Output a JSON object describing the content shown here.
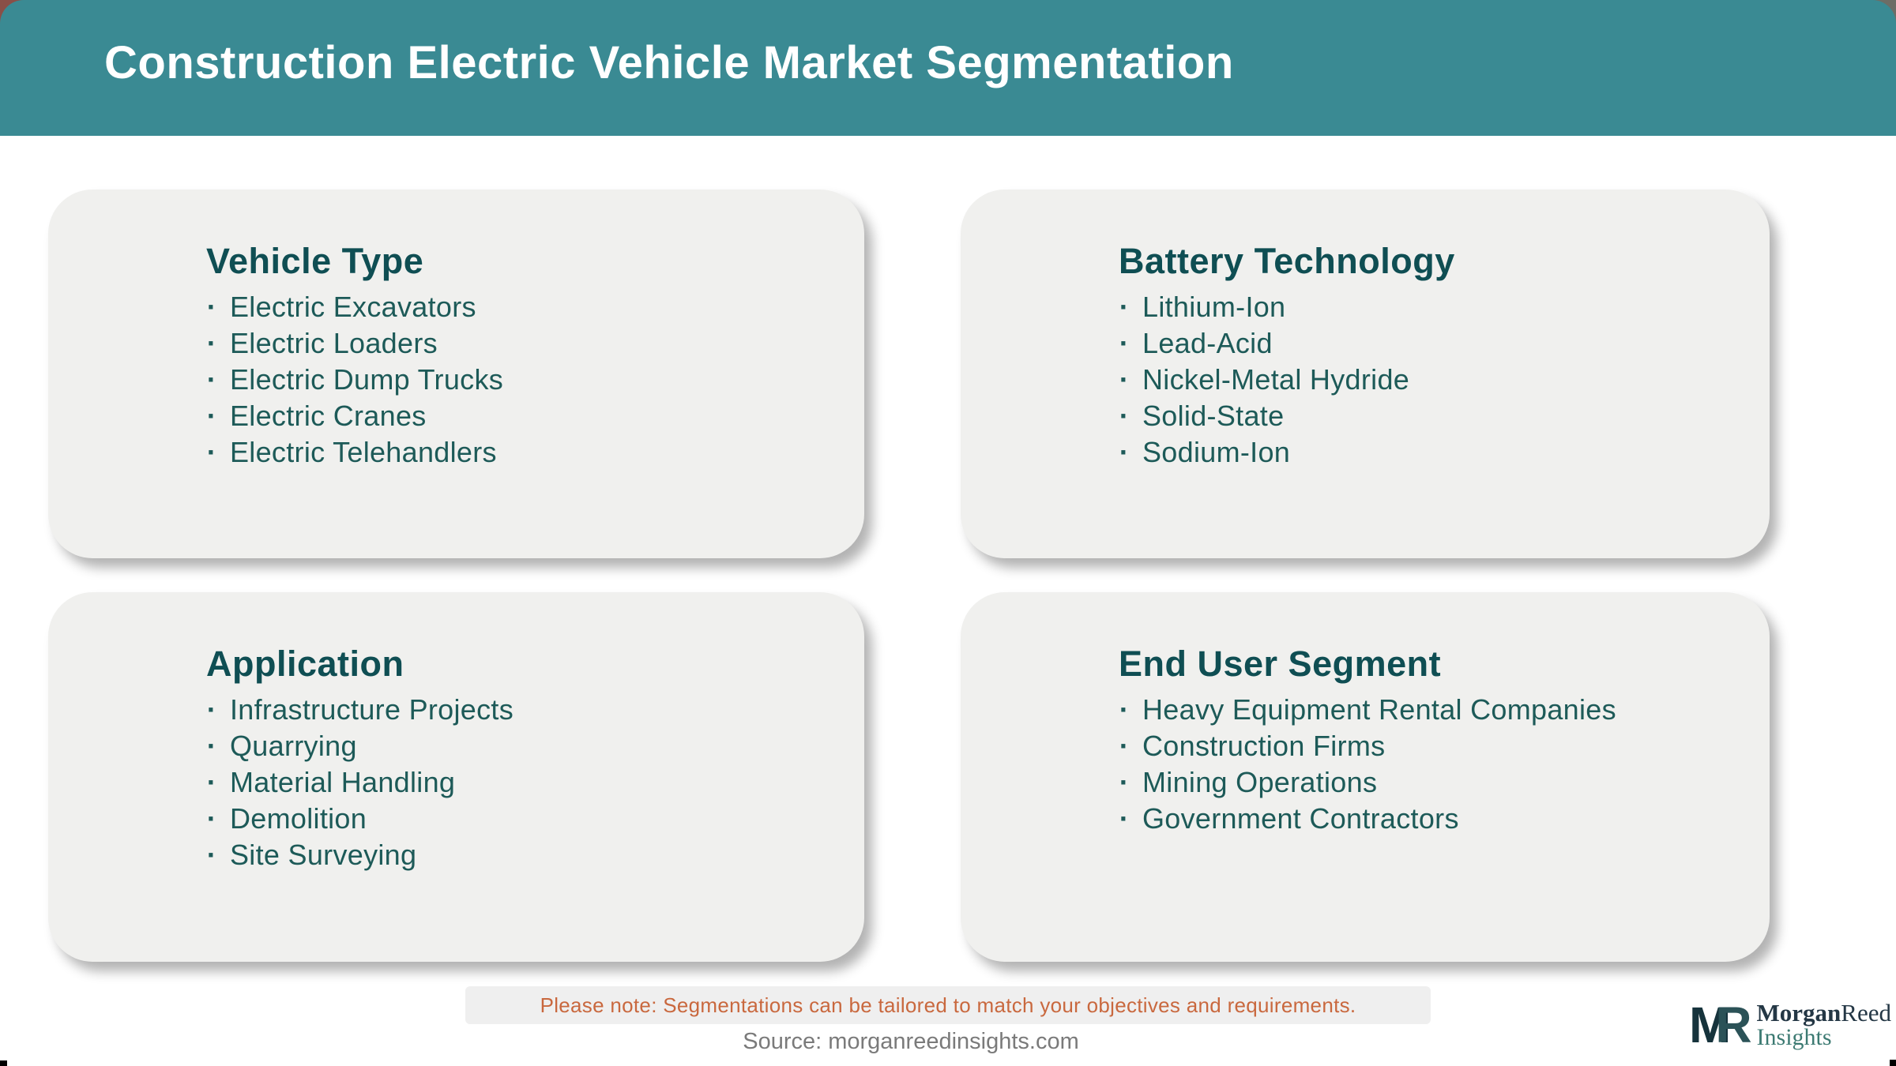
{
  "header": {
    "title": "Construction Electric Vehicle Market Segmentation"
  },
  "bullet_char": "·",
  "cards": [
    {
      "title": "Vehicle Type",
      "items": [
        "Electric Excavators",
        "Electric Loaders",
        "Electric Dump Trucks",
        "Electric Cranes",
        "Electric Telehandlers"
      ]
    },
    {
      "title": "Battery Technology",
      "items": [
        "Lithium-Ion",
        "Lead-Acid",
        "Nickel-Metal Hydride",
        "Solid-State",
        "Sodium-Ion"
      ]
    },
    {
      "title": "Application",
      "items": [
        "Infrastructure Projects",
        "Quarrying",
        "Material Handling",
        "Demolition",
        "Site Surveying"
      ]
    },
    {
      "title": "End User Segment",
      "items": [
        "Heavy Equipment Rental Companies",
        "Construction Firms",
        "Mining Operations",
        "Government Contractors"
      ]
    }
  ],
  "note": {
    "text": "Please note: Segmentations can be tailored to match your objectives and requirements."
  },
  "source": {
    "text": "Source: morganreedinsights.com"
  },
  "logo": {
    "monogram_m": "M",
    "monogram_r": "R",
    "name_bold": "Morgan",
    "name_regular": "Reed",
    "subtitle": "Insights"
  },
  "colors": {
    "header_bg": "#3a8a93",
    "card_bg": "#f0f0ee",
    "card_title": "#0f4e53",
    "list_text": "#1d5a58",
    "note_text": "#c9683e",
    "note_bg": "#efefef",
    "source_text": "#7a7a7a",
    "logo_dark": "#16333c",
    "logo_teal": "#3c7a72"
  }
}
